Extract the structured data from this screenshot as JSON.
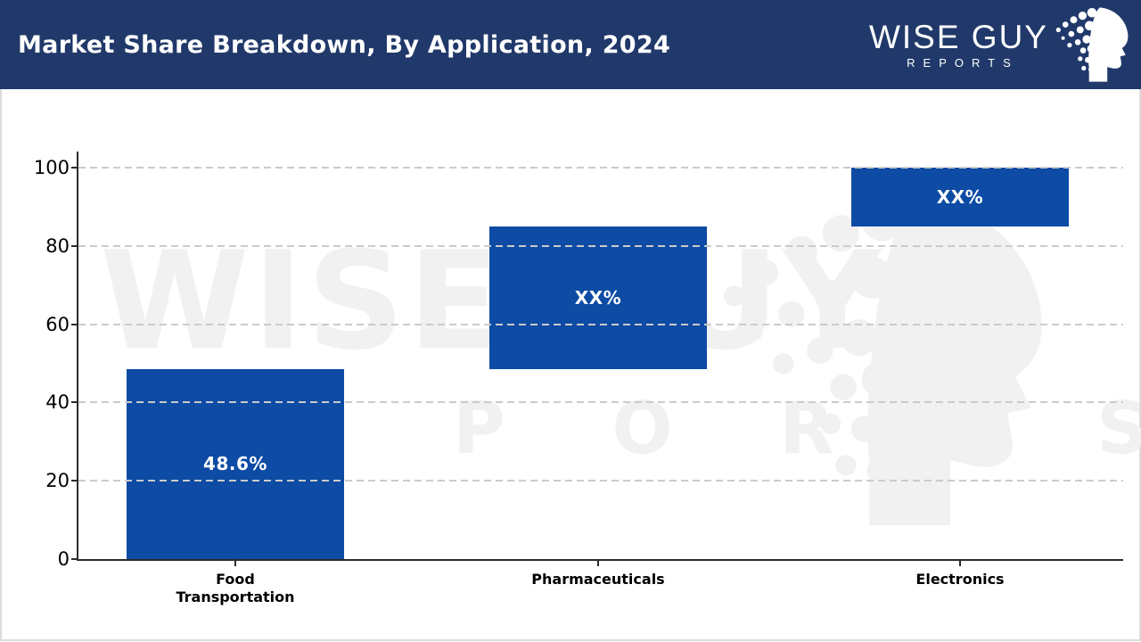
{
  "header": {
    "title": "Market Share Breakdown, By Application, 2024",
    "logo": {
      "line1": "WISE GUY",
      "line2": "REPORTS"
    }
  },
  "watermark": {
    "line1": "WISE GUY",
    "line2": "REPORTS"
  },
  "colors": {
    "header_bg": "#21396a",
    "bar": "#0d4ba4",
    "bar_label": "#ffffff",
    "grid": "#cbcbcb",
    "axis": "#2b2b2b",
    "tick_label": "#000000",
    "watermark": "#f1f1f2",
    "card_border": "#dcdcdc"
  },
  "chart_data": {
    "type": "bar",
    "subtype": "waterfall",
    "title": "Market Share Breakdown, By Application, 2024",
    "categories": [
      "Food\nTransportation",
      "Pharmaceuticals",
      "Electronics"
    ],
    "segments": [
      {
        "category": "Food Transportation",
        "start": 0,
        "end": 48.6,
        "label": "48.6%"
      },
      {
        "category": "Pharmaceuticals",
        "start": 48.6,
        "end": 85,
        "label": "XX%"
      },
      {
        "category": "Electronics",
        "start": 85,
        "end": 100,
        "label": "XX%"
      }
    ],
    "xlabel": "",
    "ylabel": "",
    "ylim": [
      0,
      100
    ],
    "yticks": [
      0,
      20,
      40,
      60,
      80,
      100
    ],
    "grid": true,
    "grid_style": "dashed",
    "grid_over_bars": true,
    "legend": "none",
    "bar_color": "#0d4ba4",
    "value_label_color": "#ffffff"
  }
}
